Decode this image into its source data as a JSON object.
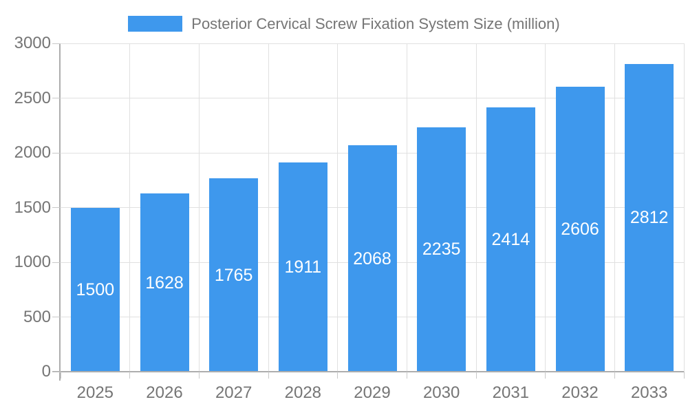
{
  "chart_data": {
    "type": "bar",
    "title": "Posterior Cervical Screw Fixation System Size (million)",
    "legend": {
      "label": "Posterior Cervical Screw Fixation System Size (million)",
      "position": "top"
    },
    "categories": [
      "2025",
      "2026",
      "2027",
      "2028",
      "2029",
      "2030",
      "2031",
      "2032",
      "2033"
    ],
    "values": [
      1500,
      1628,
      1765,
      1911,
      2068,
      2235,
      2414,
      2606,
      2812
    ],
    "xlabel": "",
    "ylabel": "",
    "ylim": [
      0,
      3000
    ],
    "yticks": [
      0,
      500,
      1000,
      1500,
      2000,
      2500,
      3000
    ],
    "grid": true,
    "colors": {
      "bar": "#3E98ED",
      "bar_label": "#FFFFFF",
      "axis_text": "#757575",
      "grid_line": "#E0E0E0",
      "axis_line": "#ADADAD",
      "tick": "#C9C9C9",
      "background": "#FFFFFF"
    }
  }
}
